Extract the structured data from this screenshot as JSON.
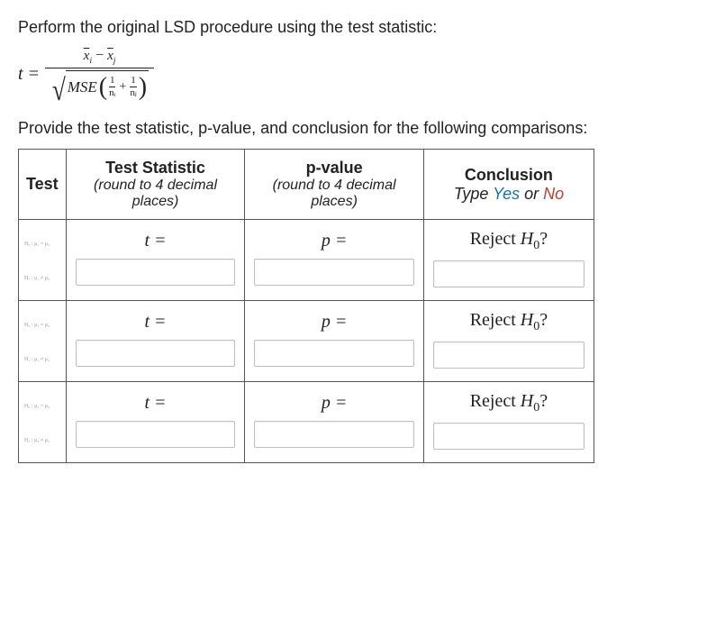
{
  "intro1": "Perform the original LSD procedure using the test statistic:",
  "intro2": "Provide the test statistic, p-value, and conclusion for the following comparisons:",
  "formula": {
    "lhs": "t =",
    "numerator_html": "x̄ᵢ − x̄ⱼ",
    "mse": "MSE",
    "frac1_num": "1",
    "frac1_den": "nᵢ",
    "frac2_num": "1",
    "frac2_den": "nⱼ"
  },
  "headers": {
    "test": "Test",
    "stat": "Test Statistic",
    "stat_sub": "(round to 4 decimal places)",
    "p": "p-value",
    "p_sub": "(round to 4 decimal places)",
    "conc": "Conclusion",
    "conc_sub_prefix": "Type ",
    "yes": "Yes",
    "or": " or ",
    "no": "No"
  },
  "row_labels": {
    "t": "t =",
    "p": "p =",
    "reject_prefix": "Reject ",
    "h0": "H",
    "h0_sub": "0",
    "q": "?"
  },
  "rows": [
    {
      "h0": "H₀ : μ₁ = μ₂",
      "ha": "H₁ : μ₁ ≠ μ₂"
    },
    {
      "h0": "H₀ : μ₁ = μ₃",
      "ha": "H₁ : μ₁ ≠ μ₃"
    },
    {
      "h0": "H₀ : μ₂ = μ₃",
      "ha": "H₁ : μ₂ ≠ μ₃"
    }
  ]
}
